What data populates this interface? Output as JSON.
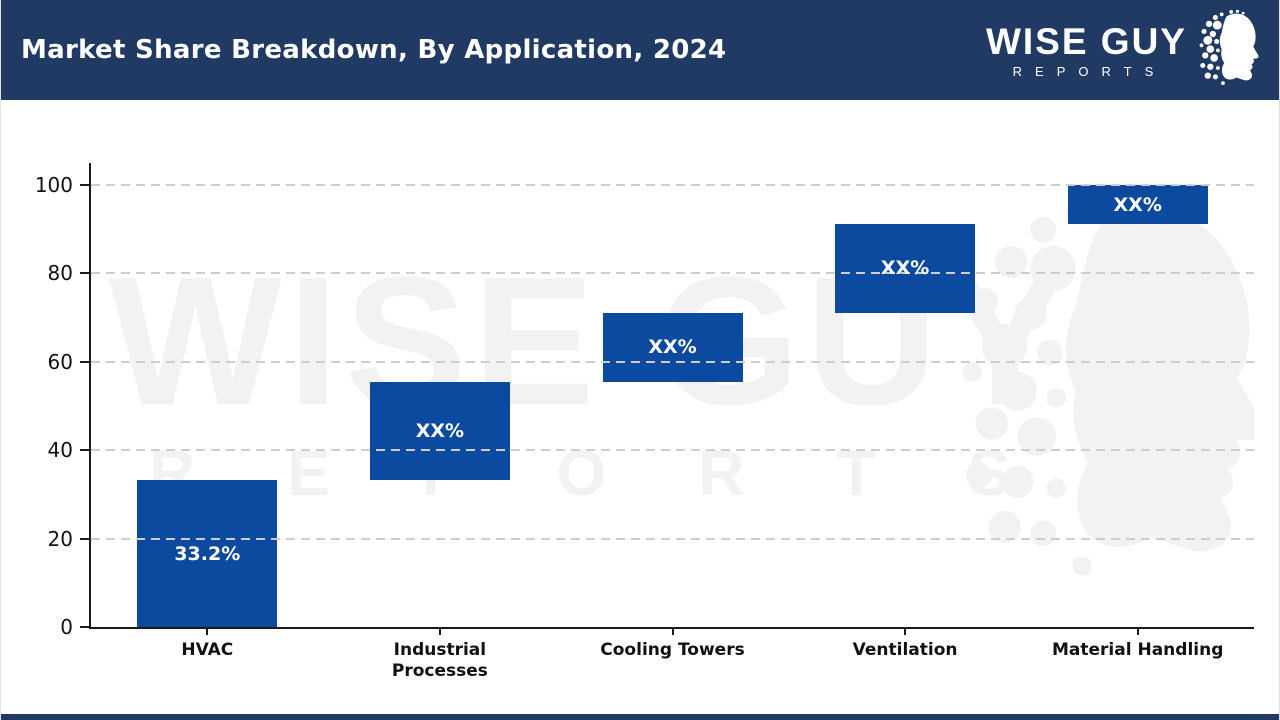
{
  "header": {
    "title": "Market Share Breakdown, By Application, 2024",
    "brand": {
      "line1": "WISE GUY",
      "line2": "REPORTS"
    }
  },
  "watermark": {
    "line1": "WISE GUY",
    "line2": "REPORTS"
  },
  "colors": {
    "header_bg": "#213A63",
    "footer_bg": "#213A63",
    "bar": "#0B4A9F",
    "bar_label": "#FFFFFF",
    "gridline": "#CDCDCD",
    "axis": "#1A1A1A",
    "watermark": "#F2F2F2"
  },
  "chart_data": {
    "type": "bar",
    "subtype": "waterfall",
    "title": "Market Share Breakdown, By Application, 2024",
    "xlabel": "",
    "ylabel": "",
    "categories": [
      "HVAC",
      "Industrial Processes",
      "Cooling Towers",
      "Ventilation",
      "Material Handling"
    ],
    "category_label_lines": [
      [
        "HVAC"
      ],
      [
        "Industrial",
        "Processes"
      ],
      [
        "Cooling Towers"
      ],
      [
        "Ventilation"
      ],
      [
        "Material Handling"
      ]
    ],
    "segments": [
      {
        "category": "HVAC",
        "start": 0,
        "end": 33.2,
        "label": "33.2%"
      },
      {
        "category": "Industrial Processes",
        "start": 33.2,
        "end": 55.4,
        "label": "XX%"
      },
      {
        "category": "Cooling Towers",
        "start": 55.4,
        "end": 71.1,
        "label": "XX%"
      },
      {
        "category": "Ventilation",
        "start": 71.1,
        "end": 91.2,
        "label": "XX%"
      },
      {
        "category": "Material Handling",
        "start": 91.2,
        "end": 100,
        "label": "XX%"
      }
    ],
    "yticks": [
      0,
      20,
      40,
      60,
      80,
      100
    ],
    "ylim": [
      0,
      105
    ],
    "grid": true,
    "legend": false
  }
}
